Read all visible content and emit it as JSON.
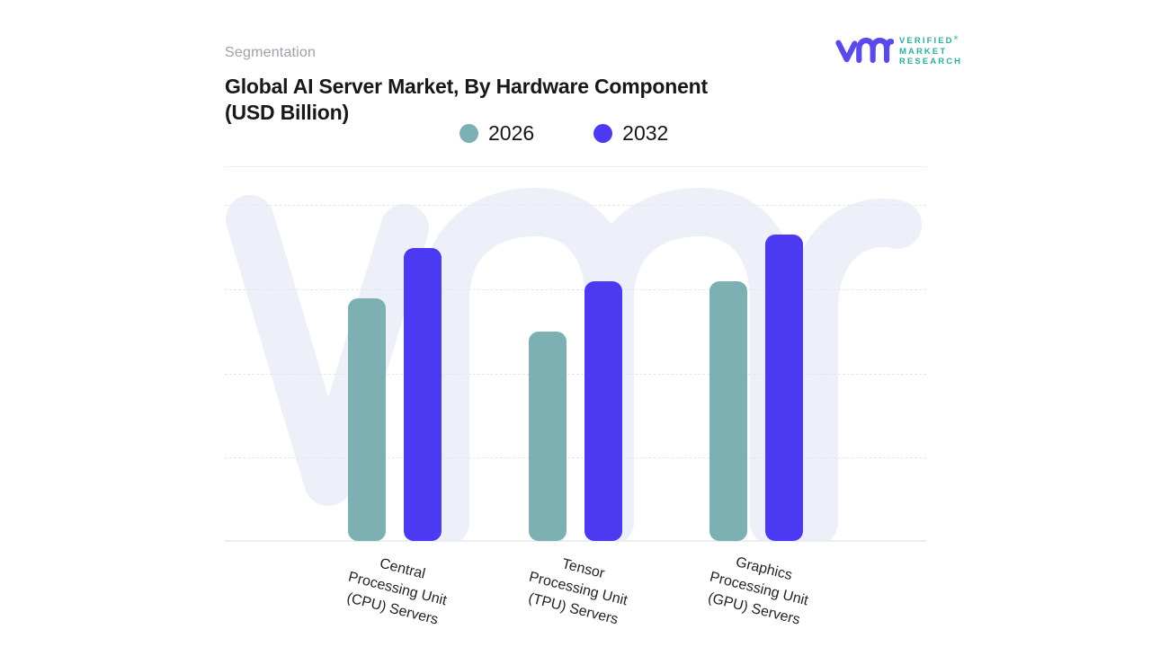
{
  "page": {
    "background": "#FFFFFF"
  },
  "header": {
    "eyebrow": "Segmentation",
    "title_line1": "Global AI Server Market, By Hardware Component",
    "title_line2": "(USD Billion)"
  },
  "logo": {
    "glyph": "vmr-monogram",
    "glyph_color": "#5A4AE8",
    "text_color": "#2BAE9F",
    "line1": "VERIFIED",
    "registered_mark": "®",
    "line2": "MARKET",
    "line3": "RESEARCH"
  },
  "legend": {
    "items": [
      {
        "label": "2026",
        "color": "#7DB0B3"
      },
      {
        "label": "2032",
        "color": "#4B3AF2"
      }
    ]
  },
  "chart_data": {
    "type": "bar",
    "title": "Global AI Server Market, By Hardware Component (USD Billion)",
    "categories": [
      "Central Processing Unit (CPU) Servers",
      "Tensor Processing Unit (TPU) Servers",
      "Graphics Processing Unit (GPU) Servers"
    ],
    "category_label_lines": [
      [
        "Central",
        "Processing Unit",
        "(CPU) Servers"
      ],
      [
        "Tensor",
        "Processing Unit",
        "(TPU) Servers"
      ],
      [
        "Graphics",
        "Processing Unit",
        "(GPU) Servers"
      ]
    ],
    "series": [
      {
        "name": "2026",
        "color": "#7DB0B3",
        "values": [
          72,
          62,
          77
        ]
      },
      {
        "name": "2032",
        "color": "#4B3AF2",
        "values": [
          87,
          77,
          91
        ]
      }
    ],
    "value_scale_note": "y-axis shows no tick labels; values are relative units where 100 = top dashed gridline",
    "ylim": [
      0,
      111
    ],
    "grid": {
      "count": 4,
      "style": "dashed",
      "color": "#E6E7EB"
    },
    "axis_line_color": "#ECEDF1",
    "legend_position": "top-center",
    "watermark": "vmr-monogram",
    "watermark_color": "#EEF0F9"
  }
}
